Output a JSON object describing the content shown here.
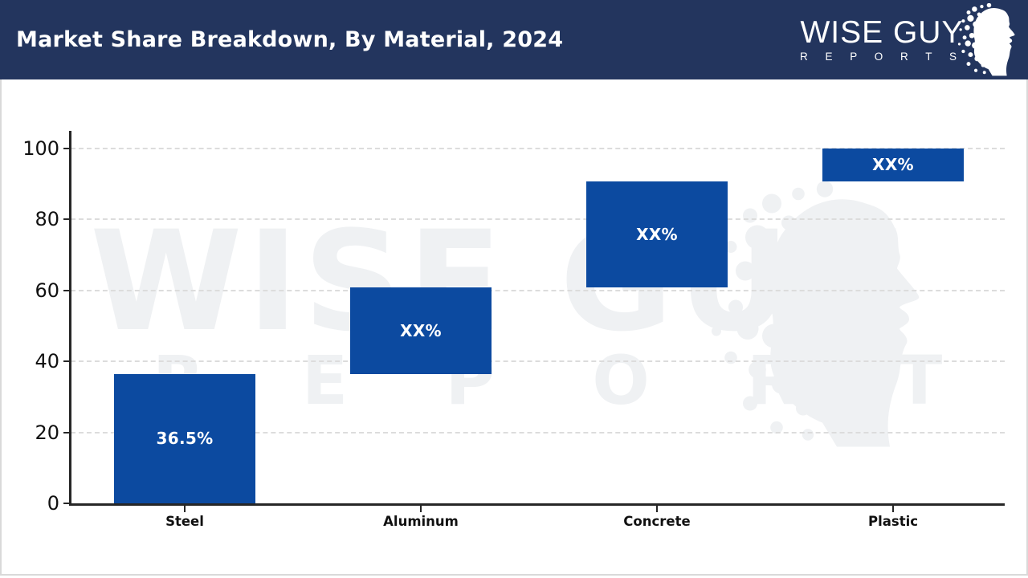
{
  "header": {
    "title": "Market Share Breakdown, By Material, 2024",
    "background_color": "#23355e",
    "logo": {
      "line1": "WISE GUY",
      "line2": "R E P O R T S"
    }
  },
  "watermark": {
    "line1": "WISE GUY",
    "line2": "R E P O R T S"
  },
  "colors": {
    "bar": "#0c4aa0",
    "bar_label": "#ffffff",
    "axis": "#262626",
    "grid": "#dcdcdc",
    "panel_border": "#d9d9d9",
    "watermark": "#eff1f3",
    "header_navy": "#23355e"
  },
  "chart_data": {
    "type": "bar",
    "subtype": "waterfall",
    "title": "Market Share Breakdown, By Material, 2024",
    "categories": [
      "Steel",
      "Aluminum",
      "Concrete",
      "Plastic"
    ],
    "segments": [
      {
        "category": "Steel",
        "start": 0,
        "end": 36.5,
        "label": "36.5%"
      },
      {
        "category": "Aluminum",
        "start": 36.5,
        "end": 60.8,
        "label": "XX%"
      },
      {
        "category": "Concrete",
        "start": 60.8,
        "end": 90.8,
        "label": "XX%"
      },
      {
        "category": "Plastic",
        "start": 90.8,
        "end": 100,
        "label": "XX%"
      }
    ],
    "yticks": [
      0,
      20,
      40,
      60,
      80,
      100
    ],
    "ylim": [
      0,
      105
    ],
    "xlabel": "",
    "ylabel": "",
    "grid": "horizontal-dashed",
    "legend": "none",
    "bar_color": "#0c4aa0",
    "bar_label_color": "#ffffff"
  }
}
